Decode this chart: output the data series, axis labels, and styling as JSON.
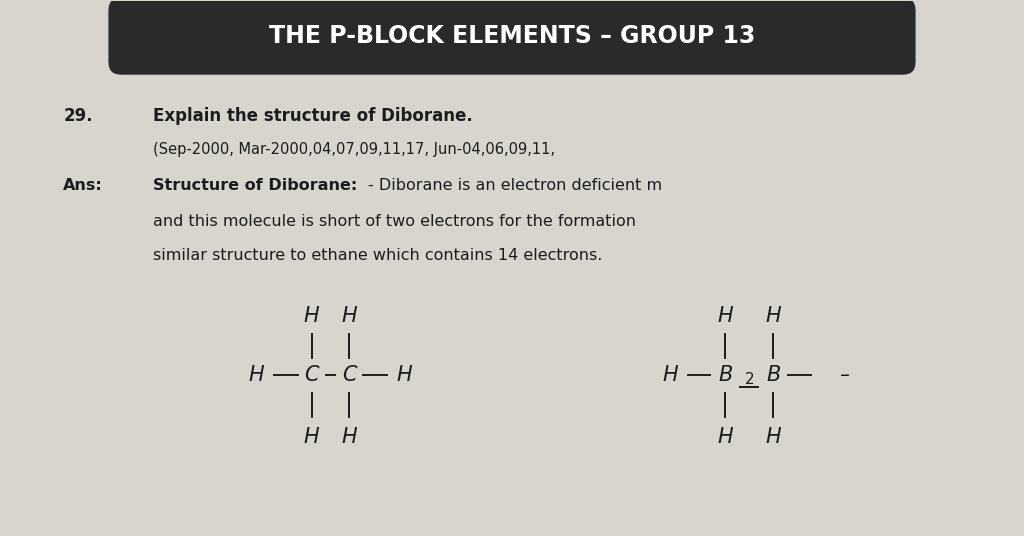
{
  "page_bg": "#d8d5ce",
  "header_bg": "#2a2a2a",
  "header_text": "THE P-BLOCK ELEMENTS – GROUP 13",
  "header_text_color": "#ffffff",
  "header_fontsize": 17,
  "q_number": "29.",
  "q_text": "Explain the structure of Diborane.",
  "q_subtext": "(Sep-2000, Mar-2000,04,07,09,11,17, Jun-04,06,09,11,",
  "ans_label": "Ans:",
  "ans_bold": "Structure of Diborane:",
  "ans_text1": "- Diborane is an electron deficient m",
  "ans_text2": "and this molecule is short of two electrons for the formation",
  "ans_text3": "similar structure to ethane which contains 14 electrons.",
  "font_color": "#1c1c1c"
}
